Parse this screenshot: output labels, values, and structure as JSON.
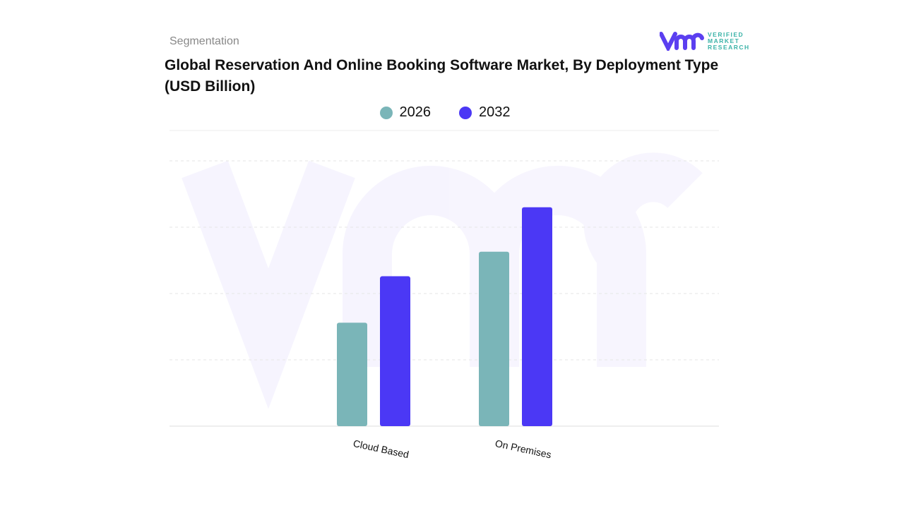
{
  "header": {
    "section": "Segmentation",
    "title": "Global Reservation And Online Booking Software Market, By Deployment Type (USD Billion)",
    "logo_text": [
      "VERIFIED",
      "MARKET",
      "RESEARCH"
    ]
  },
  "colors": {
    "2026": "#7ab5b8",
    "2032": "#4b38f5",
    "logo": "#5b3ff0"
  },
  "chart_data": {
    "type": "bar",
    "title": "Global Reservation And Online Booking Software Market, By Deployment Type (USD Billion)",
    "categories": [
      "Cloud Based",
      "On Premises"
    ],
    "series": [
      {
        "name": "2026",
        "values": [
          1.56,
          2.63
        ]
      },
      {
        "name": "2032",
        "values": [
          2.26,
          3.3
        ]
      }
    ],
    "ylim": [
      0,
      4.5
    ],
    "grid": true,
    "legend": "top-center",
    "xlabel": "",
    "ylabel": ""
  }
}
